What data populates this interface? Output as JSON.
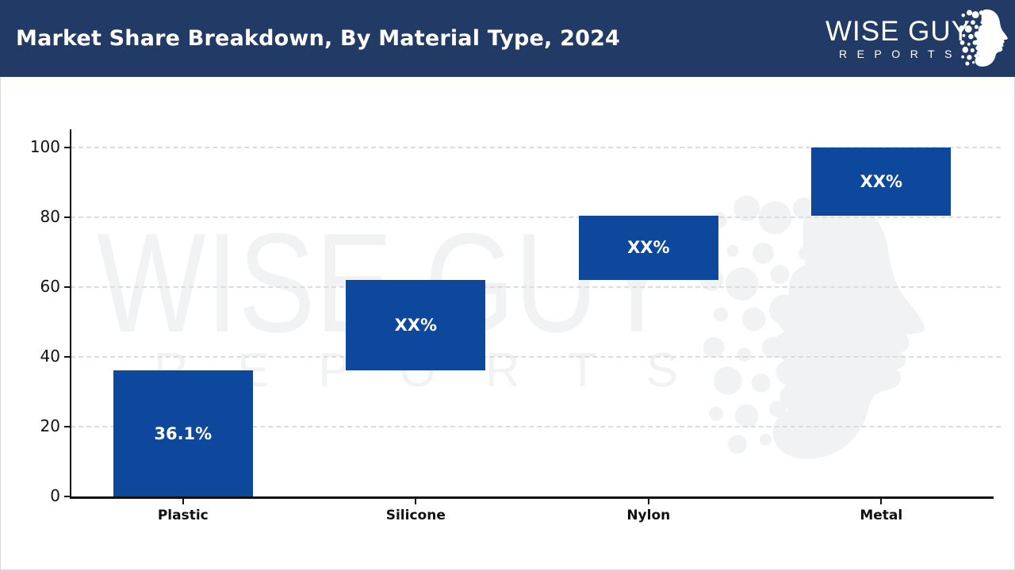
{
  "header": {
    "title": "Market Share Breakdown, By Material Type, 2024",
    "bg_color": "#213A66",
    "logo": {
      "line1": "WISE GUY",
      "line2": "REPORTS"
    }
  },
  "watermark": {
    "line1": "WISE GUY",
    "line2": "REPORTS"
  },
  "chart_data": {
    "type": "bar",
    "subtype": "waterfall",
    "title": "Market Share Breakdown, By Material Type, 2024",
    "categories": [
      "Plastic",
      "Silicone",
      "Nylon",
      "Metal"
    ],
    "bars": [
      {
        "category": "Plastic",
        "start": 0,
        "end": 36.1,
        "label": "36.1%"
      },
      {
        "category": "Silicone",
        "start": 36.1,
        "end": 62,
        "label": "XX%"
      },
      {
        "category": "Nylon",
        "start": 62,
        "end": 80.5,
        "label": "XX%"
      },
      {
        "category": "Metal",
        "start": 80.5,
        "end": 100,
        "label": "XX%"
      }
    ],
    "yticks": [
      0,
      20,
      40,
      60,
      80,
      100
    ],
    "ylim": [
      0,
      105
    ],
    "grid": "dashed-horizontal",
    "legend": "none",
    "bar_color": "#0D489C",
    "bar_label_color": "#FFFFFF",
    "axis_color": "#111111",
    "gridline_color": "#DCDCDC",
    "watermark_color": "#F1F2F4"
  }
}
